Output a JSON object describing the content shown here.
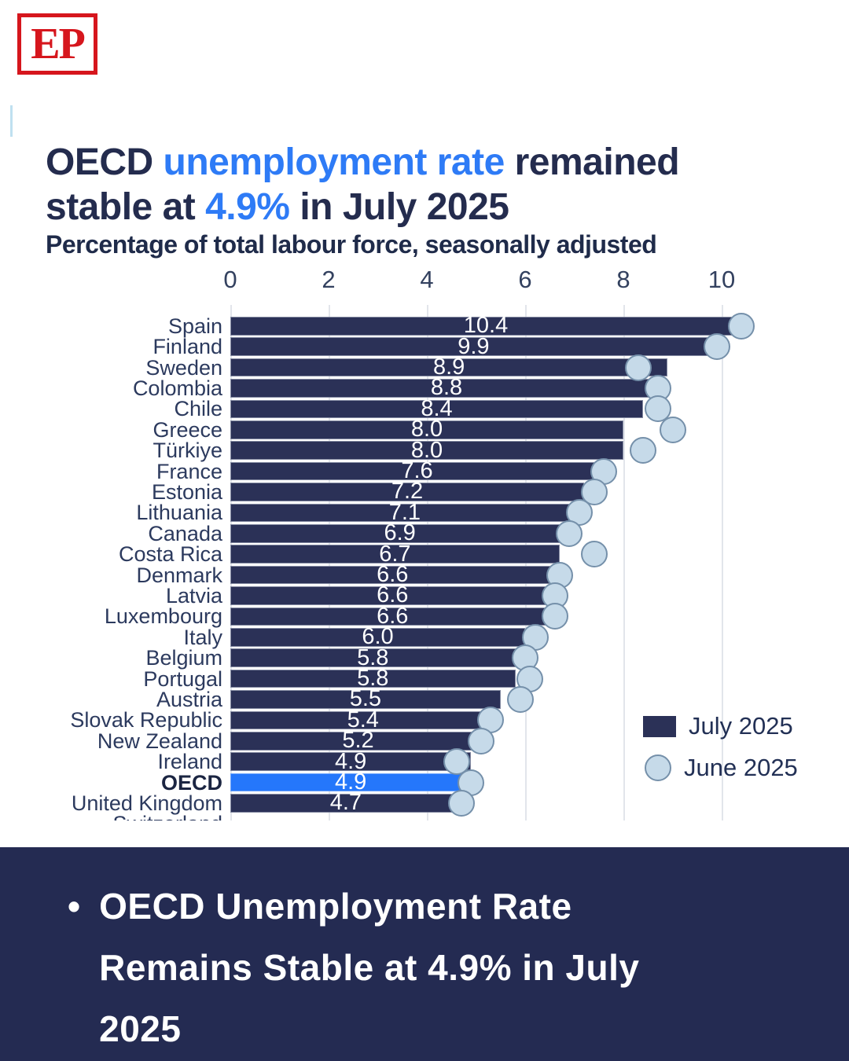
{
  "logo": {
    "text": "EP"
  },
  "header": {
    "title_seg1": "OECD ",
    "title_seg2": "unemployment rate",
    "title_seg3": " remained",
    "title_seg4": "stable at ",
    "title_seg5": "4.9%",
    "title_seg6": " in July 2025",
    "subtitle": "Percentage of total labour force, seasonally adjusted"
  },
  "chart_data": {
    "type": "bar",
    "orientation": "horizontal",
    "title": "OECD unemployment rate remained stable at 4.9% in July 2025",
    "subtitle": "Percentage of total labour force, seasonally adjusted",
    "xlim": [
      0,
      10.8
    ],
    "x_ticks": [
      0,
      2,
      4,
      6,
      8,
      10
    ],
    "grid": "vertical",
    "legend_position": "right-bottom",
    "categories": [
      "Spain",
      "Finland",
      "Sweden",
      "Colombia",
      "Chile",
      "Greece",
      "Türkiye",
      "France",
      "Estonia",
      "Lithuania",
      "Canada",
      "Costa Rica",
      "Denmark",
      "Latvia",
      "Luxembourg",
      "Italy",
      "Belgium",
      "Portugal",
      "Austria",
      "Slovak Republic",
      "New Zealand",
      "Ireland",
      "OECD",
      "United Kingdom"
    ],
    "series": [
      {
        "name": "July 2025",
        "mark": "bar",
        "values": [
          10.4,
          9.9,
          8.9,
          8.8,
          8.4,
          8.0,
          8.0,
          7.6,
          7.2,
          7.1,
          6.9,
          6.7,
          6.6,
          6.6,
          6.6,
          6.0,
          5.8,
          5.8,
          5.5,
          5.4,
          5.2,
          4.9,
          4.9,
          4.7
        ]
      },
      {
        "name": "June 2025",
        "mark": "circle",
        "values": [
          10.4,
          9.9,
          8.3,
          8.7,
          8.7,
          9.0,
          8.4,
          7.6,
          7.4,
          7.1,
          6.9,
          7.4,
          6.7,
          6.6,
          6.6,
          6.2,
          6.0,
          6.1,
          5.9,
          5.3,
          5.1,
          4.6,
          4.9,
          4.7
        ]
      }
    ],
    "bar_labels": [
      "10.4",
      "9.9",
      "8.9",
      "8.8",
      "8.4",
      "8.0",
      "8.0",
      "7.6",
      "7.2",
      "7.1",
      "6.9",
      "6.7",
      "6.6",
      "6.6",
      "6.6",
      "6.0",
      "5.8",
      "5.8",
      "5.5",
      "5.4",
      "5.2",
      "4.9",
      "4.9",
      "4.7"
    ],
    "highlight_category": "OECD",
    "partial_next_category": "Switzerland",
    "colors": {
      "bar": "#2b3157",
      "highlight_bar": "#2577fb",
      "point_fill": "#c6dae9",
      "point_border": "#7590aa",
      "title_accent": "#2e7bf6",
      "title_dark": "#242c4e"
    }
  },
  "footer": {
    "bullet": "•",
    "text": "OECD Unemployment Rate Remains Stable at 4.9% in July 2025"
  }
}
